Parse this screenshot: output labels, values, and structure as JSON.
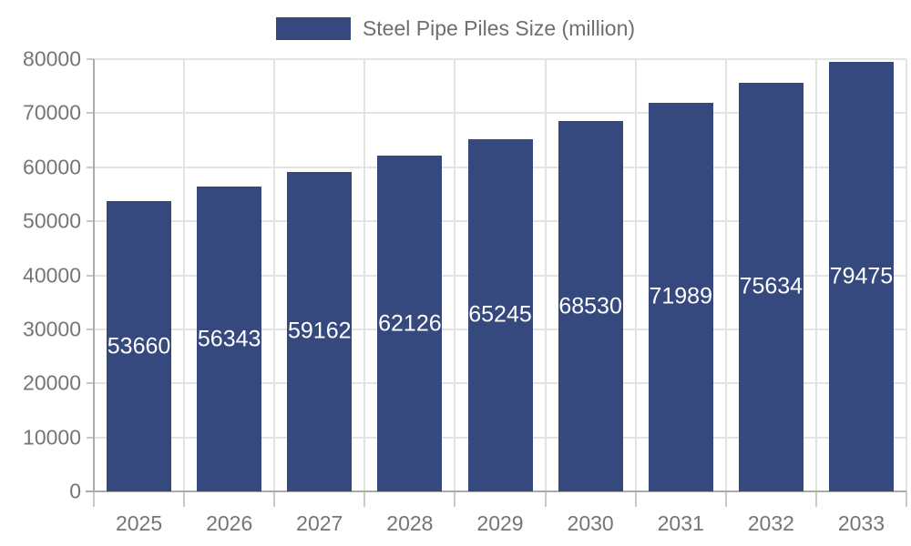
{
  "legend": {
    "label": "Steel Pipe Piles Size (million)"
  },
  "chart_data": {
    "type": "bar",
    "title": "Steel Pipe Piles Size (million)",
    "categories": [
      "2025",
      "2026",
      "2027",
      "2028",
      "2029",
      "2030",
      "2031",
      "2032",
      "2033"
    ],
    "values": [
      53660,
      56343,
      59162,
      62126,
      65245,
      68530,
      71989,
      75634,
      79475
    ],
    "series_name": "Steel Pipe Piles Size (million)",
    "xlabel": "",
    "ylabel": "",
    "ylim": [
      0,
      80000
    ],
    "ytick_step": 10000,
    "ytick_labels": [
      "0",
      "10000",
      "20000",
      "30000",
      "40000",
      "50000",
      "60000",
      "70000",
      "80000"
    ],
    "grid": true,
    "legend_position": "top-center",
    "bar_value_labels_position": "inside-center",
    "colors": {
      "bar": "#36497e",
      "bar_value_label": "#ffffff",
      "axis_text": "#757575",
      "legend_text": "#6f6f6f",
      "grid_line": "#e3e3e3",
      "axis_line": "#ababab",
      "tick_mark": "#c9c9c9",
      "background": "#ffffff"
    }
  }
}
